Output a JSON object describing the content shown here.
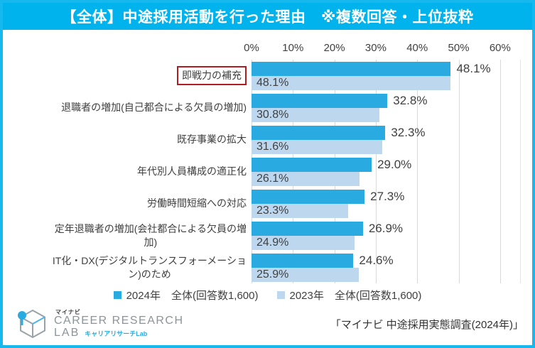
{
  "header": {
    "title": "【全体】中途採用活動を行った理由　※複数回答・上位抜粋"
  },
  "chart_data": {
    "type": "bar",
    "orientation": "horizontal",
    "title": "【全体】中途採用活動を行った理由 ※複数回答・上位抜粋",
    "axis_ticks": [
      "0%",
      "10%",
      "20%",
      "30%",
      "40%",
      "50%",
      "60%"
    ],
    "axis_tick_values": [
      0,
      10,
      20,
      30,
      40,
      50,
      60
    ],
    "axis_max": 65,
    "grid": true,
    "legend_position": "bottom",
    "highlighted_category": "即戦力の補充",
    "categories": [
      [
        "即戦力の補充"
      ],
      [
        "退職者の増加(自己都合による欠員の増加)"
      ],
      [
        "既存事業の拡大"
      ],
      [
        "年代別人員構成の適正化"
      ],
      [
        "労働時間短縮への対応"
      ],
      [
        "定年退職者の増加(会社都合による欠員の増",
        "加)"
      ],
      [
        "IT化・DX(デジタルトランスフォーメーショ",
        "ン)のため"
      ]
    ],
    "series": [
      {
        "name": "2024年　全体(回答数1,600)",
        "color": "#29abe2",
        "values": [
          48.1,
          32.8,
          32.3,
          29.0,
          27.3,
          26.9,
          24.6
        ]
      },
      {
        "name": "2023年　全体(回答数1,600)",
        "color": "#bdd7ee",
        "values": [
          48.1,
          30.8,
          31.6,
          26.1,
          23.3,
          24.9,
          25.9
        ]
      }
    ],
    "value_label_suffix": "%"
  },
  "colors": {
    "frame": "#17b8ee",
    "header_bg": "#00b3ec",
    "highlight_box": "#b01e23",
    "gridline": "#d9d9d9",
    "text": "#404040"
  },
  "footer": {
    "logo": {
      "brand_small": "マイナビ",
      "brand_main": "CAREER RESEARCH",
      "brand_sub": "LAB",
      "brand_jp": "キャリアリサーチLab",
      "icon": "cube-wireframe-with-blue-dot"
    },
    "source": "「マイナビ 中途採用実態調査(2024年)」"
  }
}
